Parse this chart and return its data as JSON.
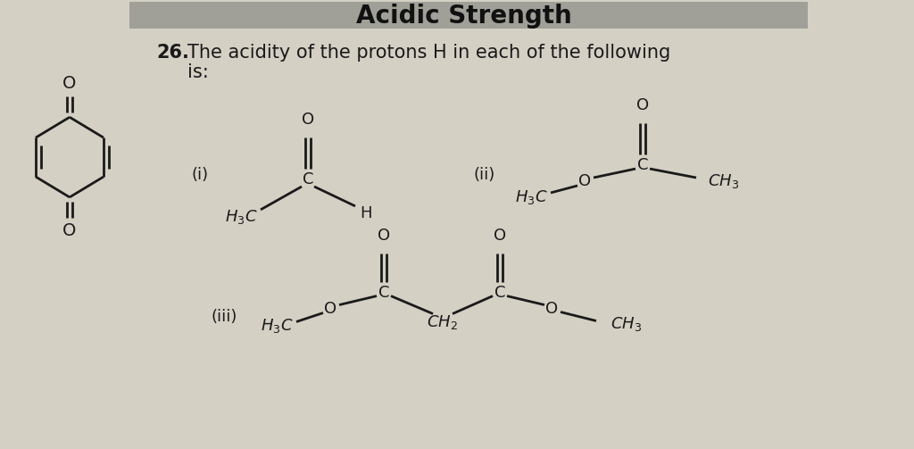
{
  "bg_color": "#c8c4b8",
  "paper_color": "#d4d0c4",
  "text_color": "#1a1a1a",
  "title_bg": "#a0a098",
  "title": "Acidic Strength",
  "q_num": "26.",
  "q_text1": "The acidity of the protons H in each of the following",
  "q_text2": "is:",
  "label_i": "(i)",
  "label_ii": "(ii)",
  "label_iii": "(iii)",
  "font_size_title": 20,
  "font_size_q": 15,
  "font_size_struct": 13
}
